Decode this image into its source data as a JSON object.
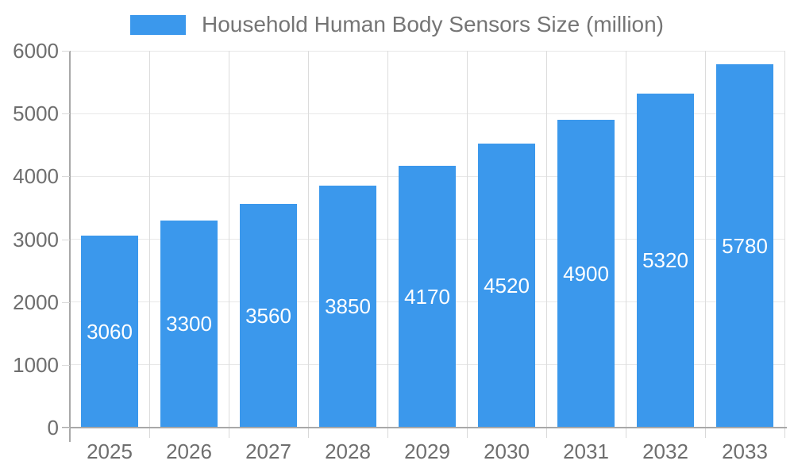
{
  "legend": {
    "label": "Household Human Body Sensors Size (million)",
    "swatch_color": "#3B98EC"
  },
  "chart_data": {
    "type": "bar",
    "title": "Household Human Body Sensors Size (million)",
    "categories": [
      "2025",
      "2026",
      "2027",
      "2028",
      "2029",
      "2030",
      "2031",
      "2032",
      "2033"
    ],
    "values": [
      3060,
      3300,
      3560,
      3850,
      4170,
      4520,
      4900,
      5320,
      5780
    ],
    "series": [
      {
        "name": "Household Human Body Sensors Size (million)",
        "values": [
          3060,
          3300,
          3560,
          3850,
          4170,
          4520,
          4900,
          5320,
          5780
        ]
      }
    ],
    "xlabel": "",
    "ylabel": "",
    "ylim": [
      0,
      6000
    ],
    "yticks": [
      0,
      1000,
      2000,
      3000,
      4000,
      5000,
      6000
    ],
    "grid": true,
    "legend_position": "top-center",
    "bar_color": "#3B98EC",
    "bar_label_color": "#FFFFFF",
    "axis_text_color": "#6E6E6E",
    "grid_color_horizontal": "#E8E8E8",
    "grid_color_vertical": "#DCDCDC",
    "tick_color": "#D9D9D9",
    "axis_line_color": "#A8A8A8",
    "background_color": "#FFFFFF"
  }
}
